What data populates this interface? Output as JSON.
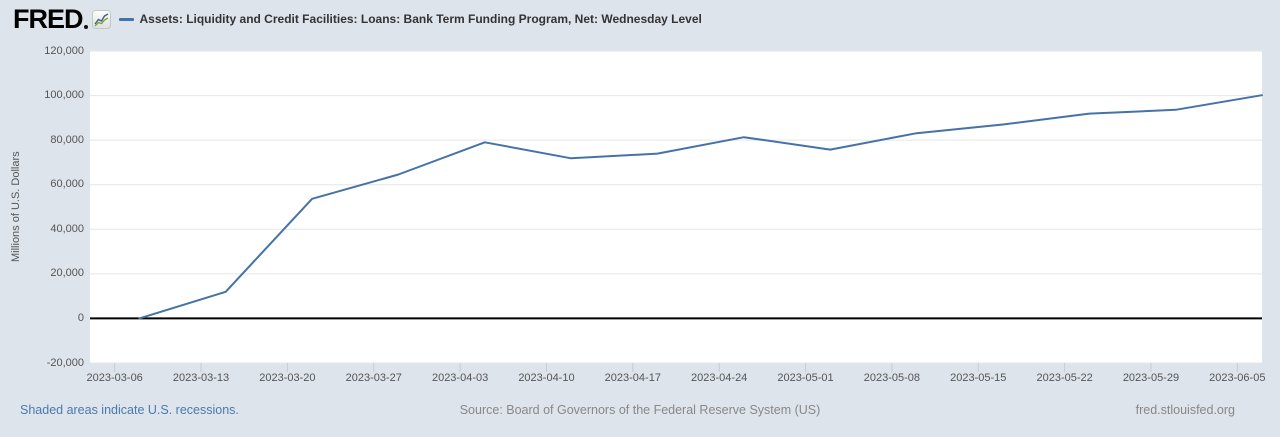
{
  "header": {
    "logo_text": "FRED",
    "logo_icon": "line-chart-icon",
    "series_legend": {
      "color": "#4572a7",
      "label": "Assets: Liquidity and Credit Facilities: Loans: Bank Term Funding Program, Net: Wednesday Level"
    }
  },
  "chart_data": {
    "type": "line",
    "title": "Assets: Liquidity and Credit Facilities: Loans: Bank Term Funding Program, Net: Wednesday Level",
    "ylabel": "Millions of U.S. Dollars",
    "xlabel": "",
    "ylim": [
      -20000,
      120000
    ],
    "ytick_step": 20000,
    "ytick_labels": [
      "-20,000",
      "0",
      "20,000",
      "40,000",
      "60,000",
      "80,000",
      "100,000",
      "120,000"
    ],
    "x_range": [
      "2023-03-04",
      "2023-06-07"
    ],
    "xticks": [
      "2023-03-06",
      "2023-03-13",
      "2023-03-20",
      "2023-03-27",
      "2023-04-03",
      "2023-04-10",
      "2023-04-17",
      "2023-04-24",
      "2023-05-01",
      "2023-05-08",
      "2023-05-15",
      "2023-05-22",
      "2023-05-29",
      "2023-06-05"
    ],
    "grid": true,
    "legend_position": "top-left",
    "zero_line": true,
    "series": [
      {
        "name": "Assets: Liquidity and Credit Facilities: Loans: Bank Term Funding Program, Net: Wednesday Level",
        "x": [
          "2023-03-08",
          "2023-03-15",
          "2023-03-22",
          "2023-03-29",
          "2023-04-05",
          "2023-04-12",
          "2023-04-19",
          "2023-04-26",
          "2023-05-03",
          "2023-05-10",
          "2023-05-17",
          "2023-05-24",
          "2023-05-31",
          "2023-06-07"
        ],
        "values": [
          0,
          11943,
          53669,
          64595,
          79021,
          71837,
          73982,
          81327,
          75778,
          83101,
          87006,
          91907,
          93615,
          100161
        ]
      }
    ]
  },
  "colors": {
    "page_bg": "#dee4ec",
    "plot_bg": "#ffffff",
    "grid": "#e6e6e6",
    "line": "#4572a7",
    "zero_line": "#000000",
    "axis_text": "#555555",
    "title_text": "#333333",
    "footer_link": "#4b79ad",
    "footer_text": "#888888",
    "tick": "#c4cbd6"
  },
  "footer": {
    "recession_note": "Shaded areas indicate U.S. recessions.",
    "source": "Source: Board of Governors of the Federal Reserve System (US)",
    "site": "fred.stlouisfed.org"
  }
}
